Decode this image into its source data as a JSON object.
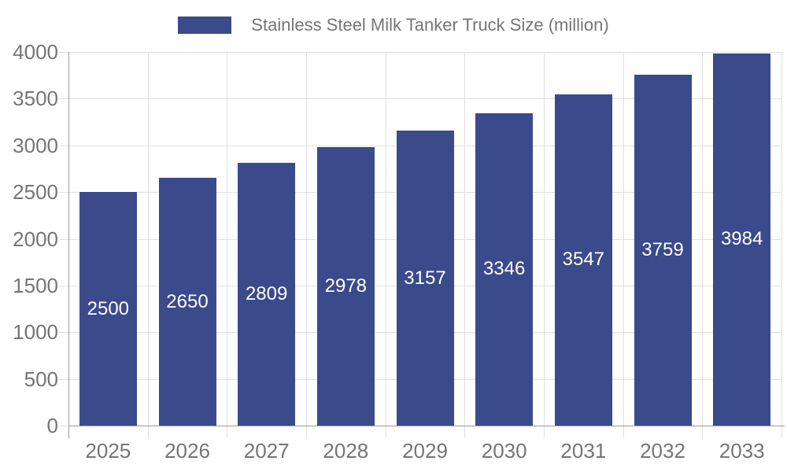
{
  "chart_data": {
    "type": "bar",
    "title": "Stainless Steel Milk Tanker Truck Size (million)",
    "legend_position": "top-center",
    "categories": [
      "2025",
      "2026",
      "2027",
      "2028",
      "2029",
      "2030",
      "2031",
      "2032",
      "2033"
    ],
    "series": [
      {
        "name": "Stainless Steel Milk Tanker Truck Size (million)",
        "values": [
          2500,
          2650,
          2809,
          2978,
          3157,
          3346,
          3547,
          3759,
          3984
        ]
      }
    ],
    "xlabel": "",
    "ylabel": "",
    "ylim": [
      0,
      4000
    ],
    "yticks": [
      0,
      500,
      1000,
      1500,
      2000,
      2500,
      3000,
      3500,
      4000
    ],
    "grid": true,
    "bar_value_labels_inside": true,
    "colors": {
      "bar": "#3A4A8A",
      "bar_label": "#FFFFFF",
      "grid": "#E0E0E0",
      "axis": "#9B9B9B",
      "tick_text": "#757575",
      "legend_text": "#757575",
      "background": "#FFFFFF"
    }
  }
}
